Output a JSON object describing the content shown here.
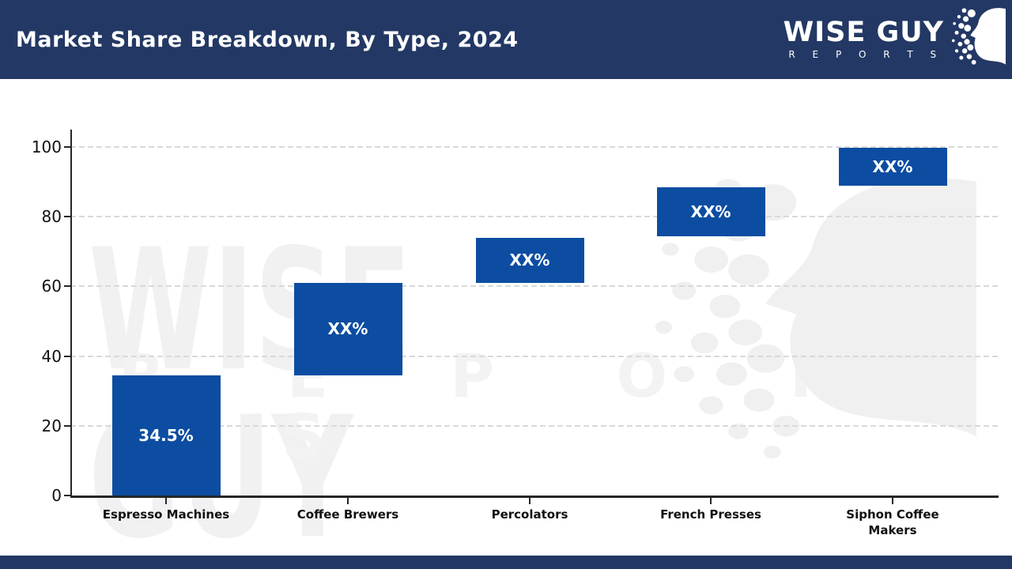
{
  "header": {
    "title": "Market Share Breakdown, By Type, 2024",
    "logo_line1": "WISE GUY",
    "logo_line2": "R E P O R T S"
  },
  "watermark": {
    "line1": "WISE GUY",
    "line2": "R E P O R T S"
  },
  "footer": {},
  "colors": {
    "header_bg": "#233864",
    "footer_bg": "#233864",
    "bar": "#0c4da2",
    "grid": "#d9d9d9",
    "axis": "#262626",
    "bar_label": "#ffffff",
    "watermark": "#f1f1f1"
  },
  "chart_data": {
    "type": "bar",
    "subtype": "waterfall",
    "title": "Market Share Breakdown, By Type, 2024",
    "categories": [
      "Espresso Machines",
      "Coffee Brewers",
      "Percolators",
      "French Presses",
      "Siphon Coffee Makers"
    ],
    "xtick_labels": [
      "Espresso Machines",
      "Coffee Brewers",
      "Percolators",
      "French Presses",
      "Siphon Coffee\nMakers"
    ],
    "segments": [
      {
        "category": "Espresso Machines",
        "start": 0,
        "end": 34.5,
        "label": "34.5%"
      },
      {
        "category": "Coffee Brewers",
        "start": 34.5,
        "end": 61,
        "label": "XX%"
      },
      {
        "category": "Percolators",
        "start": 61,
        "end": 74,
        "label": "XX%"
      },
      {
        "category": "French Presses",
        "start": 74.3,
        "end": 88.5,
        "label": "XX%"
      },
      {
        "category": "Siphon Coffee Makers",
        "start": 88.9,
        "end": 99.8,
        "label": "XX%"
      }
    ],
    "yticks": [
      0,
      20,
      40,
      60,
      80,
      100
    ],
    "ylim": [
      0,
      105
    ],
    "xlabel": "",
    "ylabel": "",
    "grid": "horizontal-dashed",
    "legend": "none",
    "bar_color": "#0c4da2"
  }
}
